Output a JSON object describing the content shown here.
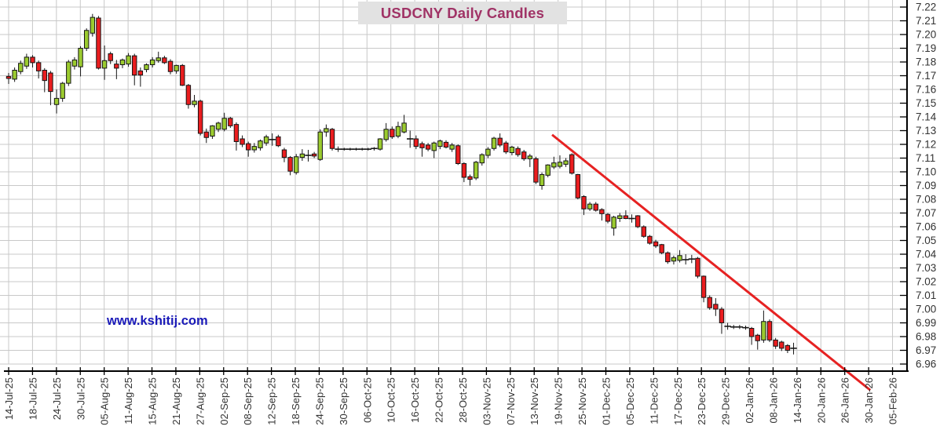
{
  "title": "USDCNY Daily Candles",
  "watermark": "www.kshitij.com",
  "colors": {
    "up_candle": "#9bcb2f",
    "down_candle": "#ea1d1f",
    "candle_border": "#151515",
    "wick": "#151515",
    "grid": "#c8c8c8",
    "axis": "#000000",
    "label_text": "#333333",
    "title_text": "#a03366",
    "title_bg": "#e2e2e2",
    "watermark_text": "#1a1ab8",
    "trendline": "#e62222"
  },
  "y_axis": {
    "max": 7.22,
    "min": 6.96,
    "step": 0.01,
    "labels": [
      "7.22",
      "7.21",
      "7.20",
      "7.19",
      "7.18",
      "7.17",
      "7.16",
      "7.15",
      "7.14",
      "7.13",
      "7.12",
      "7.11",
      "7.10",
      "7.09",
      "7.08",
      "7.07",
      "7.06",
      "7.05",
      "7.04",
      "7.03",
      "7.02",
      "7.01",
      "7.00",
      "6.99",
      "6.98",
      "6.97",
      "6.96"
    ]
  },
  "x_axis": {
    "labels": [
      "14-Jul-25",
      "18-Jul-25",
      "24-Jul-25",
      "30-Jul-25",
      "05-Aug-25",
      "11-Aug-25",
      "15-Aug-25",
      "21-Aug-25",
      "27-Aug-25",
      "02-Sep-25",
      "08-Sep-25",
      "12-Sep-25",
      "18-Sep-25",
      "24-Sep-25",
      "30-Sep-25",
      "06-Oct-25",
      "10-Oct-25",
      "16-Oct-25",
      "22-Oct-25",
      "28-Oct-25",
      "03-Nov-25",
      "07-Nov-25",
      "13-Nov-25",
      "19-Nov-25",
      "25-Nov-25",
      "01-Dec-25",
      "05-Dec-25",
      "11-Dec-25",
      "17-Dec-25",
      "23-Dec-25",
      "29-Dec-25",
      "02-Jan-26",
      "08-Jan-26",
      "14-Jan-26",
      "20-Jan-26",
      "26-Jan-26",
      "30-Jan-26",
      "05-Feb-26"
    ],
    "candles_per_gridline": 4
  },
  "chart_data": {
    "type": "candlestick",
    "symbol": "USDCNY",
    "interval": "daily",
    "title": "USDCNY Daily Candles",
    "ylim": [
      6.96,
      7.22
    ],
    "grid": true,
    "first_candle_date": "14-Jul-25",
    "last_candle_date": "14-Jan-26",
    "ohlc_note": "each candle = [open, high, low, close], one business day, starting 14-Jul-25",
    "ohlc": [
      [
        7.1695,
        7.172,
        7.164,
        7.168
      ],
      [
        7.1675,
        7.176,
        7.1655,
        7.174
      ],
      [
        7.173,
        7.181,
        7.171,
        7.179
      ],
      [
        7.177,
        7.186,
        7.175,
        7.1835
      ],
      [
        7.1835,
        7.185,
        7.176,
        7.1795
      ],
      [
        7.1795,
        7.181,
        7.168,
        7.1735
      ],
      [
        7.174,
        7.1755,
        7.158,
        7.1665
      ],
      [
        7.172,
        7.1735,
        7.1485,
        7.1585
      ],
      [
        7.149,
        7.16,
        7.1425,
        7.1535
      ],
      [
        7.1535,
        7.1655,
        7.151,
        7.1645
      ],
      [
        7.1645,
        7.1815,
        7.1625,
        7.18
      ],
      [
        7.177,
        7.1835,
        7.1745,
        7.1815
      ],
      [
        7.1765,
        7.1915,
        7.1695,
        7.19
      ],
      [
        7.19,
        7.2045,
        7.188,
        7.203
      ],
      [
        7.201,
        7.215,
        7.1985,
        7.2125
      ],
      [
        7.212,
        7.2135,
        7.1745,
        7.1755
      ],
      [
        7.1755,
        7.192,
        7.167,
        7.181
      ],
      [
        7.186,
        7.1875,
        7.1785,
        7.181
      ],
      [
        7.1785,
        7.1815,
        7.1675,
        7.1755
      ],
      [
        7.178,
        7.1825,
        7.1755,
        7.1815
      ],
      [
        7.1785,
        7.1865,
        7.1765,
        7.1845
      ],
      [
        7.1845,
        7.186,
        7.163,
        7.1705
      ],
      [
        7.1735,
        7.176,
        7.162,
        7.1705
      ],
      [
        7.1745,
        7.179,
        7.1725,
        7.178
      ],
      [
        7.178,
        7.1835,
        7.176,
        7.1815
      ],
      [
        7.181,
        7.1875,
        7.1795,
        7.183
      ],
      [
        7.183,
        7.1845,
        7.1785,
        7.1795
      ],
      [
        7.1805,
        7.182,
        7.171,
        7.173
      ],
      [
        7.1735,
        7.178,
        7.1715,
        7.1775
      ],
      [
        7.1775,
        7.1785,
        7.1625,
        7.163
      ],
      [
        7.163,
        7.164,
        7.146,
        7.149
      ],
      [
        7.149,
        7.156,
        7.147,
        7.1515
      ],
      [
        7.1515,
        7.1525,
        7.1265,
        7.128
      ],
      [
        7.129,
        7.1315,
        7.121,
        7.125
      ],
      [
        7.126,
        7.134,
        7.124,
        7.1335
      ],
      [
        7.131,
        7.1365,
        7.129,
        7.1355
      ],
      [
        7.131,
        7.143,
        7.1295,
        7.139
      ],
      [
        7.139,
        7.14,
        7.132,
        7.1335
      ],
      [
        7.1345,
        7.136,
        7.1155,
        7.122
      ],
      [
        7.124,
        7.1265,
        7.118,
        7.12
      ],
      [
        7.1205,
        7.122,
        7.111,
        7.116
      ],
      [
        7.116,
        7.121,
        7.114,
        7.1185
      ],
      [
        7.1175,
        7.1235,
        7.1155,
        7.1225
      ],
      [
        7.121,
        7.127,
        7.119,
        7.1255
      ],
      [
        7.1235,
        7.128,
        7.119,
        7.1235
      ],
      [
        7.1255,
        7.127,
        7.118,
        7.119
      ],
      [
        7.116,
        7.1175,
        7.107,
        7.1105
      ],
      [
        7.1105,
        7.1115,
        7.0975,
        7.1005
      ],
      [
        7.0995,
        7.113,
        7.098,
        7.111
      ],
      [
        7.1105,
        7.1165,
        7.108,
        7.113
      ],
      [
        7.112,
        7.116,
        7.1075,
        7.112
      ],
      [
        7.113,
        7.1145,
        7.11,
        7.1115
      ],
      [
        7.109,
        7.131,
        7.108,
        7.129
      ],
      [
        7.129,
        7.1345,
        7.1255,
        7.1315
      ],
      [
        7.131,
        7.132,
        7.1155,
        7.117
      ],
      [
        7.1165,
        7.1185,
        7.1145,
        7.1165
      ],
      [
        7.1165,
        7.1175,
        7.1155,
        7.1165
      ],
      [
        7.1165,
        7.1175,
        7.1155,
        7.1165
      ],
      [
        7.1165,
        7.1175,
        7.1155,
        7.1165
      ],
      [
        7.1165,
        7.1175,
        7.1155,
        7.1165
      ],
      [
        7.1165,
        7.1175,
        7.1155,
        7.1165
      ],
      [
        7.1165,
        7.118,
        7.1155,
        7.117
      ],
      [
        7.1165,
        7.1245,
        7.1155,
        7.124
      ],
      [
        7.1235,
        7.1355,
        7.122,
        7.131
      ],
      [
        7.131,
        7.133,
        7.124,
        7.1255
      ],
      [
        7.126,
        7.1365,
        7.1245,
        7.133
      ],
      [
        7.129,
        7.1415,
        7.128,
        7.1355
      ],
      [
        7.124,
        7.13,
        7.1175,
        7.124
      ],
      [
        7.124,
        7.1265,
        7.1165,
        7.1185
      ],
      [
        7.1205,
        7.122,
        7.111,
        7.1175
      ],
      [
        7.1195,
        7.121,
        7.115,
        7.1165
      ],
      [
        7.1155,
        7.122,
        7.11,
        7.121
      ],
      [
        7.1185,
        7.1235,
        7.1165,
        7.1225
      ],
      [
        7.1215,
        7.123,
        7.117,
        7.118
      ],
      [
        7.1165,
        7.121,
        7.1145,
        7.1195
      ],
      [
        7.119,
        7.12,
        7.105,
        7.106
      ],
      [
        7.106,
        7.107,
        7.0925,
        7.096
      ],
      [
        7.0965,
        7.098,
        7.09,
        7.0945
      ],
      [
        7.0955,
        7.108,
        7.094,
        7.107
      ],
      [
        7.1065,
        7.1135,
        7.1045,
        7.1125
      ],
      [
        7.112,
        7.118,
        7.11,
        7.1165
      ],
      [
        7.117,
        7.1255,
        7.1155,
        7.1245
      ],
      [
        7.1245,
        7.128,
        7.118,
        7.1195
      ],
      [
        7.121,
        7.1225,
        7.113,
        7.1145
      ],
      [
        7.114,
        7.119,
        7.112,
        7.118
      ],
      [
        7.117,
        7.1185,
        7.111,
        7.1125
      ],
      [
        7.1145,
        7.116,
        7.108,
        7.1095
      ],
      [
        7.1095,
        7.113,
        7.1035,
        7.1115
      ],
      [
        7.1095,
        7.111,
        7.091,
        7.0925
      ],
      [
        7.09,
        7.0995,
        7.087,
        7.098
      ],
      [
        7.0975,
        7.1055,
        7.096,
        7.105
      ],
      [
        7.1035,
        7.111,
        7.102,
        7.1065
      ],
      [
        7.104,
        7.112,
        7.1025,
        7.107
      ],
      [
        7.1055,
        7.11,
        7.1035,
        7.108
      ],
      [
        7.1125,
        7.1135,
        7.098,
        7.099
      ],
      [
        7.098,
        7.0985,
        7.08,
        7.081
      ],
      [
        7.082,
        7.083,
        7.0685,
        7.073
      ],
      [
        7.073,
        7.078,
        7.0715,
        7.0765
      ],
      [
        7.0765,
        7.078,
        7.071,
        7.072
      ],
      [
        7.0725,
        7.0735,
        7.0645,
        7.0695
      ],
      [
        7.069,
        7.07,
        7.0625,
        7.064
      ],
      [
        7.059,
        7.068,
        7.0535,
        7.067
      ],
      [
        7.066,
        7.07,
        7.0635,
        7.068
      ],
      [
        7.068,
        7.072,
        7.0655,
        7.066
      ],
      [
        7.066,
        7.069,
        7.063,
        7.066
      ],
      [
        7.068,
        7.0685,
        7.059,
        7.06
      ],
      [
        7.06,
        7.061,
        7.052,
        7.053
      ],
      [
        7.053,
        7.054,
        7.047,
        7.048
      ],
      [
        7.049,
        7.0505,
        7.0445,
        7.046
      ],
      [
        7.047,
        7.0475,
        7.04,
        7.041
      ],
      [
        7.041,
        7.042,
        7.033,
        7.0345
      ],
      [
        7.035,
        7.039,
        7.0325,
        7.0375
      ],
      [
        7.0355,
        7.043,
        7.034,
        7.039
      ],
      [
        7.036,
        7.04,
        7.0325,
        7.036
      ],
      [
        7.0365,
        7.0395,
        7.0335,
        7.0365
      ],
      [
        7.037,
        7.038,
        7.0225,
        7.024
      ],
      [
        7.024,
        7.0245,
        7.005,
        7.0085
      ],
      [
        7.0085,
        7.01,
        6.9995,
        7.001
      ],
      [
        7.0035,
        7.008,
        6.995,
        7.0
      ],
      [
        7.0,
        7.0015,
        6.982,
        6.99
      ],
      [
        6.9875,
        6.99,
        6.985,
        6.9875
      ],
      [
        6.987,
        6.9885,
        6.9855,
        6.987
      ],
      [
        6.987,
        6.9885,
        6.9855,
        6.987
      ],
      [
        6.9865,
        6.988,
        6.985,
        6.9865
      ],
      [
        6.986,
        6.987,
        6.974,
        6.98
      ],
      [
        6.981,
        6.982,
        6.9705,
        6.977
      ],
      [
        6.9775,
        6.999,
        6.9755,
        6.991
      ],
      [
        6.991,
        6.9925,
        6.976,
        6.9775
      ],
      [
        6.9775,
        6.979,
        6.971,
        6.973
      ],
      [
        6.976,
        6.977,
        6.9695,
        6.9715
      ],
      [
        6.9735,
        6.9745,
        6.968,
        6.97
      ],
      [
        6.9715,
        6.9755,
        6.967,
        6.9715
      ]
    ],
    "trendline": {
      "from": {
        "candle_index": 90.7,
        "price": 7.127
      },
      "to": {
        "candle_index": 143.8,
        "price": 6.941
      }
    },
    "annotations": [
      "red downward resistance trendline from ~19-Nov-25 at ~7.127 to ~26-Jan-26 at ~6.941"
    ],
    "legend_position": "none"
  }
}
